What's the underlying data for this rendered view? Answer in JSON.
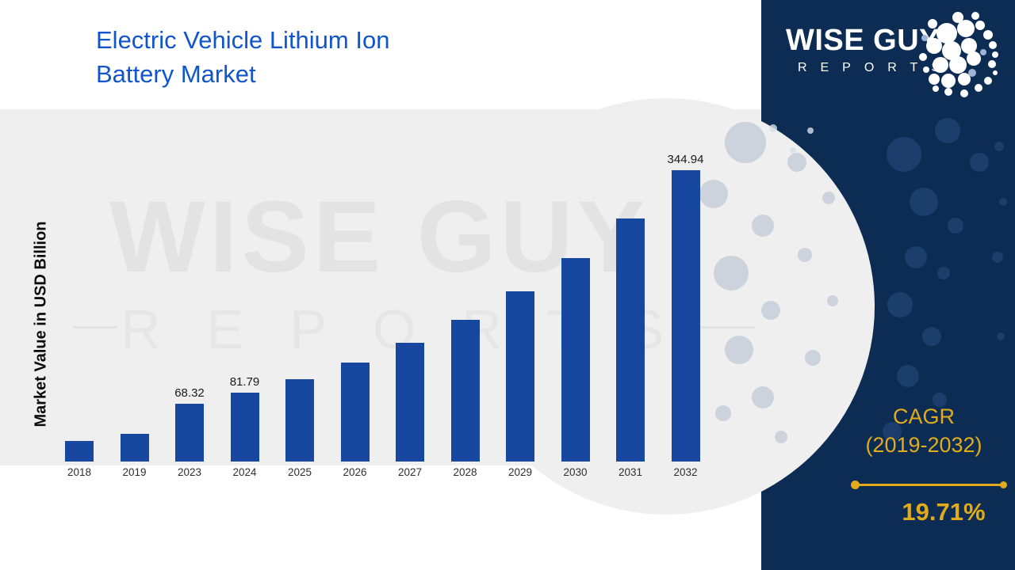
{
  "header": {
    "title_line1": "Electric Vehicle Lithium Ion",
    "title_line2": "Battery Market"
  },
  "logo": {
    "name": "WISE GUY",
    "sub": "REPORTS"
  },
  "watermark": {
    "line1": "WISE GUY",
    "line2": "REPORTS"
  },
  "cagr": {
    "line1": "CAGR",
    "line2": "(2019-2032)",
    "value": "19.71%"
  },
  "colors": {
    "title_blue": "#1155CC",
    "bar_blue": "#17479E",
    "sidebar_navy": "#0D2C54",
    "accent_gold": "#E2AB1B",
    "backdrop_gray": "#EFEFEF"
  },
  "chart_data": {
    "type": "bar",
    "title": "Electric Vehicle Lithium Ion Battery Market",
    "ylabel": "Market Value in USD Billion",
    "xlabel": "",
    "categories": [
      "2018",
      "2019",
      "2023",
      "2024",
      "2025",
      "2026",
      "2027",
      "2028",
      "2029",
      "2030",
      "2031",
      "2032"
    ],
    "values": [
      24.0,
      33.3,
      68.32,
      81.79,
      97.9,
      117.2,
      140.3,
      168.0,
      201.1,
      240.7,
      288.2,
      344.94
    ],
    "bar_labels": [
      "",
      "",
      "68.32",
      "81.79",
      "",
      "",
      "",
      "",
      "",
      "",
      "",
      "344.94"
    ],
    "ylim": [
      0,
      360
    ],
    "grid": false,
    "legend": false
  }
}
